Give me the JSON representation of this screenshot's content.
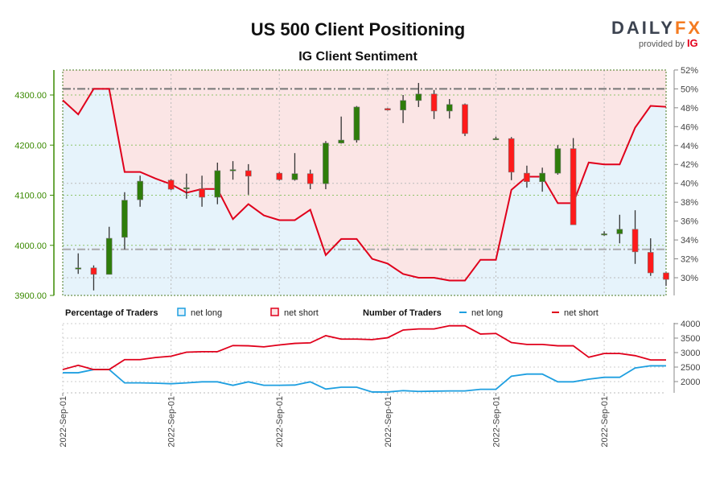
{
  "title": "US 500 Client Positioning",
  "subtitle": "IG Client Sentiment",
  "logo": {
    "brand_a": "DAILY",
    "brand_b": "FX",
    "provided": "provided by",
    "ig": "IG"
  },
  "colors": {
    "long": "#1e9fe0",
    "short": "#e0001b",
    "up": "#2e7d0a",
    "down": "#ff1a1a",
    "fill_long": "#e6f3fb",
    "fill_short": "#fbe5e5",
    "axis_green": "#3a8a00"
  },
  "legend": {
    "pct_title": "Percentage of Traders",
    "num_title": "Number of Traders",
    "net_long": "net long",
    "net_short": "net short"
  },
  "chart_data": [
    {
      "type": "candlestick+line",
      "title": "US 500 Client Positioning",
      "x_tick_labels": [
        "2022-Sep-01",
        "2022-Sep-01",
        "2022-Sep-01",
        "2022-Sep-01",
        "2022-Sep-01",
        "2022-Sep-01"
      ],
      "x_tick_slots": [
        0,
        7,
        14,
        21,
        28,
        35
      ],
      "slots": 40,
      "price_axis": {
        "ylim": [
          3900,
          4350
        ],
        "ticks": [
          "4300.00",
          "4200.00",
          "4100.00",
          "4000.00",
          "3900.00"
        ],
        "tick_values": [
          4300,
          4200,
          4100,
          4000,
          3900
        ]
      },
      "pct_axis": {
        "ylim": [
          28.2,
          52
        ],
        "ticks": [
          "52%",
          "50%",
          "48%",
          "46%",
          "44%",
          "42%",
          "40%",
          "38%",
          "36%",
          "34%",
          "32%",
          "30%"
        ],
        "tick_values": [
          52,
          50,
          48,
          46,
          44,
          42,
          40,
          38,
          36,
          34,
          32,
          30
        ]
      },
      "reference_lines_pct": [
        50,
        33
      ],
      "candles": [
        {
          "s": 1,
          "o": 3955,
          "h": 3984,
          "l": 3943,
          "c": 3955
        },
        {
          "s": 2,
          "o": 3955,
          "h": 3960,
          "l": 3910,
          "c": 3942
        },
        {
          "s": 3,
          "o": 3942,
          "h": 4037,
          "l": 3942,
          "c": 4014
        },
        {
          "s": 4,
          "o": 4016,
          "h": 4106,
          "l": 3992,
          "c": 4090
        },
        {
          "s": 5,
          "o": 4091,
          "h": 4139,
          "l": 4077,
          "c": 4128
        },
        {
          "s": 7,
          "o": 4130,
          "h": 4132,
          "l": 4110,
          "c": 4112
        },
        {
          "s": 8,
          "o": 4113,
          "h": 4143,
          "l": 4093,
          "c": 4115
        },
        {
          "s": 9,
          "o": 4113,
          "h": 4139,
          "l": 4077,
          "c": 4096
        },
        {
          "s": 10,
          "o": 4096,
          "h": 4165,
          "l": 4082,
          "c": 4149
        },
        {
          "s": 11,
          "o": 4150,
          "h": 4168,
          "l": 4131,
          "c": 4151
        },
        {
          "s": 12,
          "o": 4149,
          "h": 4162,
          "l": 4101,
          "c": 4138
        },
        {
          "s": 14,
          "o": 4144,
          "h": 4146,
          "l": 4129,
          "c": 4131
        },
        {
          "s": 15,
          "o": 4131,
          "h": 4184,
          "l": 4129,
          "c": 4143
        },
        {
          "s": 16,
          "o": 4143,
          "h": 4151,
          "l": 4112,
          "c": 4123
        },
        {
          "s": 17,
          "o": 4123,
          "h": 4208,
          "l": 4112,
          "c": 4204
        },
        {
          "s": 18,
          "o": 4204,
          "h": 4257,
          "l": 4203,
          "c": 4210
        },
        {
          "s": 19,
          "o": 4210,
          "h": 4278,
          "l": 4205,
          "c": 4276
        },
        {
          "s": 21,
          "o": 4273,
          "h": 4274,
          "l": 4269,
          "c": 4270
        },
        {
          "s": 22,
          "o": 4270,
          "h": 4300,
          "l": 4244,
          "c": 4289
        },
        {
          "s": 23,
          "o": 4289,
          "h": 4324,
          "l": 4276,
          "c": 4302
        },
        {
          "s": 24,
          "o": 4302,
          "h": 4310,
          "l": 4252,
          "c": 4268
        },
        {
          "s": 25,
          "o": 4268,
          "h": 4292,
          "l": 4253,
          "c": 4281
        },
        {
          "s": 26,
          "o": 4281,
          "h": 4283,
          "l": 4218,
          "c": 4223
        },
        {
          "s": 28,
          "o": 4213,
          "h": 4217,
          "l": 4210,
          "c": 4213
        },
        {
          "s": 29,
          "o": 4213,
          "h": 4216,
          "l": 4130,
          "c": 4146
        },
        {
          "s": 30,
          "o": 4144,
          "h": 4159,
          "l": 4115,
          "c": 4127
        },
        {
          "s": 31,
          "o": 4127,
          "h": 4155,
          "l": 4107,
          "c": 4144
        },
        {
          "s": 32,
          "o": 4144,
          "h": 4200,
          "l": 4141,
          "c": 4193
        },
        {
          "s": 33,
          "o": 4193,
          "h": 4214,
          "l": 4041,
          "c": 4041
        },
        {
          "s": 35,
          "o": 4023,
          "h": 4028,
          "l": 4019,
          "c": 4023
        },
        {
          "s": 36,
          "o": 4023,
          "h": 4061,
          "l": 4004,
          "c": 4032
        },
        {
          "s": 37,
          "o": 4032,
          "h": 4070,
          "l": 3963,
          "c": 3987
        },
        {
          "s": 38,
          "o": 3986,
          "h": 4014,
          "l": 3939,
          "c": 3945
        },
        {
          "s": 39,
          "o": 3945,
          "h": 3946,
          "l": 3919,
          "c": 3932
        }
      ],
      "net_long_pct": [
        48.8,
        47.3,
        50.0,
        50.0,
        41.2,
        41.2,
        40.5,
        39.9,
        39.0,
        39.4,
        39.4,
        36.2,
        37.8,
        36.6,
        36.1,
        36.1,
        37.2,
        32.4,
        34.1,
        34.1,
        32.0,
        31.5,
        30.4,
        30.0,
        30.0,
        29.7,
        29.7,
        31.9,
        31.9,
        39.3,
        40.7,
        40.7,
        37.9,
        37.9,
        42.2,
        42.0,
        42.0,
        45.9,
        48.2,
        48.1
      ]
    },
    {
      "type": "line",
      "title": "Number of Traders",
      "ylim": [
        1610,
        4000
      ],
      "ticks": [
        "4000",
        "3500",
        "3000",
        "2500",
        "2000"
      ],
      "tick_values": [
        4000,
        3500,
        3000,
        2500,
        2000
      ],
      "series": [
        {
          "name": "net long",
          "values": [
            2304,
            2304,
            2415,
            2415,
            1954,
            1954,
            1945,
            1926,
            1954,
            1991,
            1991,
            1871,
            1991,
            1871,
            1871,
            1880,
            1991,
            1742,
            1806,
            1806,
            1641,
            1641,
            1687,
            1659,
            1668,
            1677,
            1677,
            1733,
            1733,
            2184,
            2258,
            2258,
            1991,
            1991,
            2083,
            2147,
            2147,
            2470,
            2544,
            2544
          ]
        },
        {
          "name": "net short",
          "values": [
            2415,
            2562,
            2415,
            2415,
            2756,
            2756,
            2830,
            2876,
            3014,
            3032,
            3032,
            3244,
            3235,
            3198,
            3263,
            3318,
            3336,
            3585,
            3465,
            3465,
            3447,
            3512,
            3779,
            3816,
            3816,
            3926,
            3926,
            3641,
            3659,
            3346,
            3281,
            3281,
            3235,
            3235,
            2839,
            2968,
            2968,
            2894,
            2747,
            2747
          ]
        }
      ]
    }
  ]
}
